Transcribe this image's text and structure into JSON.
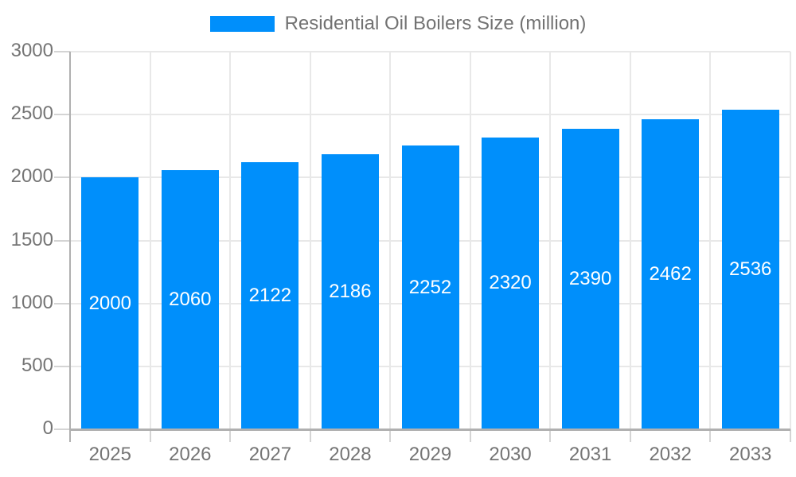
{
  "legend": {
    "label": "Residential Oil Boilers Size (million)",
    "swatch_color": "#008FFB"
  },
  "chart_data": {
    "type": "bar",
    "title": "Residential Oil Boilers Size (million)",
    "categories": [
      "2025",
      "2026",
      "2027",
      "2028",
      "2029",
      "2030",
      "2031",
      "2032",
      "2033"
    ],
    "series": [
      {
        "name": "Residential Oil Boilers Size (million)",
        "values": [
          2000,
          2060,
          2122,
          2186,
          2252,
          2320,
          2390,
          2462,
          2536
        ]
      }
    ],
    "xlabel": "",
    "ylabel": "",
    "ylim": [
      0,
      3000
    ],
    "yticks": [
      0,
      500,
      1000,
      1500,
      2000,
      2500,
      3000
    ],
    "grid": true,
    "legend_position": "top-center",
    "value_label_position": "inside-center"
  },
  "colors": {
    "bar": "#008FFB",
    "grid_line": "#e8e8e8",
    "axis_line": "#b0b0b0",
    "tick_mark": "#d4d4d4",
    "tick_label": "#757575",
    "legend_text": "#727272",
    "bar_value_text": "#ffffff",
    "background": "#ffffff"
  }
}
